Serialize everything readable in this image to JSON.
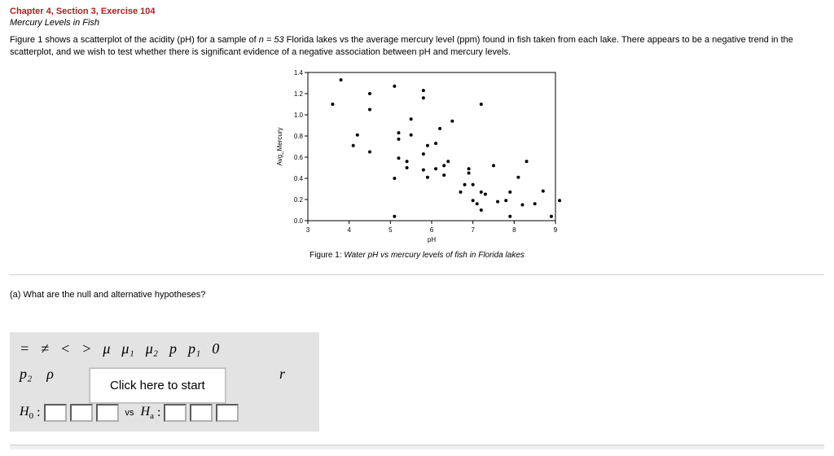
{
  "header": {
    "chapter_line": "Chapter 4, Section 3, Exercise 104",
    "subtitle": "Mercury Levels in Fish"
  },
  "body": {
    "paragraph_pre": "Figure 1 shows a scatterplot of the acidity (pH) for a sample of ",
    "n_expr": "n = 53",
    "paragraph_post": " Florida lakes vs the average mercury level (ppm) found in fish taken from each lake. There appears to be a negative trend in the scatterplot, and we wish to test whether there is significant evidence of a negative association between pH and mercury levels."
  },
  "chart": {
    "type": "scatter",
    "xlabel": "pH",
    "ylabel": "Avg_Mercury",
    "xlim": [
      3,
      9
    ],
    "ylim": [
      0.0,
      1.4
    ],
    "xticks": [
      3,
      4,
      5,
      6,
      7,
      8,
      9
    ],
    "yticks": [
      0.0,
      0.2,
      0.4,
      0.6,
      0.8,
      1.0,
      1.2,
      1.4
    ],
    "background_color": "#ffffff",
    "border_color": "#000000",
    "point_color": "#000000",
    "point_radius": 2,
    "label_fontsize": 8,
    "tick_fontsize": 8,
    "points": [
      [
        3.6,
        1.1
      ],
      [
        3.8,
        1.33
      ],
      [
        4.1,
        0.71
      ],
      [
        4.2,
        0.81
      ],
      [
        4.5,
        1.2
      ],
      [
        4.5,
        0.65
      ],
      [
        4.5,
        1.05
      ],
      [
        5.1,
        1.27
      ],
      [
        5.1,
        0.04
      ],
      [
        5.1,
        0.4
      ],
      [
        5.2,
        0.83
      ],
      [
        5.2,
        0.77
      ],
      [
        5.2,
        0.59
      ],
      [
        5.4,
        0.5
      ],
      [
        5.4,
        0.56
      ],
      [
        5.5,
        0.81
      ],
      [
        5.5,
        0.96
      ],
      [
        5.8,
        1.23
      ],
      [
        5.8,
        1.16
      ],
      [
        5.8,
        0.48
      ],
      [
        5.8,
        0.63
      ],
      [
        5.9,
        0.41
      ],
      [
        5.9,
        0.71
      ],
      [
        6.1,
        0.73
      ],
      [
        6.1,
        0.49
      ],
      [
        6.2,
        0.87
      ],
      [
        6.3,
        0.43
      ],
      [
        6.3,
        0.52
      ],
      [
        6.4,
        0.56
      ],
      [
        6.5,
        0.94
      ],
      [
        6.7,
        0.27
      ],
      [
        6.8,
        0.34
      ],
      [
        6.9,
        0.45
      ],
      [
        6.9,
        0.49
      ],
      [
        7.0,
        0.19
      ],
      [
        7.0,
        0.34
      ],
      [
        7.1,
        0.16
      ],
      [
        7.2,
        0.1
      ],
      [
        7.2,
        0.27
      ],
      [
        7.2,
        1.1
      ],
      [
        7.3,
        0.25
      ],
      [
        7.5,
        0.52
      ],
      [
        7.6,
        0.18
      ],
      [
        7.8,
        0.19
      ],
      [
        7.9,
        0.04
      ],
      [
        7.9,
        0.27
      ],
      [
        8.1,
        0.41
      ],
      [
        8.2,
        0.15
      ],
      [
        8.3,
        0.56
      ],
      [
        8.5,
        0.16
      ],
      [
        8.7,
        0.28
      ],
      [
        8.9,
        0.04
      ],
      [
        9.1,
        0.19
      ]
    ]
  },
  "caption": {
    "prefix": "Figure 1: ",
    "text": "Water pH vs mercury levels of fish in Florida lakes"
  },
  "question_a": "(a) What are the null and alternative hypotheses?",
  "palette": {
    "row1": [
      "=",
      "≠",
      "<",
      ">",
      "μ",
      "μ₁",
      "μ₂",
      "p",
      "p₁",
      "0"
    ],
    "row2_left": [
      "p₂",
      "ρ"
    ],
    "row2_right": "r",
    "click_text": "Click here to start",
    "h0_label": "H",
    "h0_sub": "0",
    "ha_label": "H",
    "ha_sub": "a",
    "vs": "vs",
    "colon": ":"
  }
}
